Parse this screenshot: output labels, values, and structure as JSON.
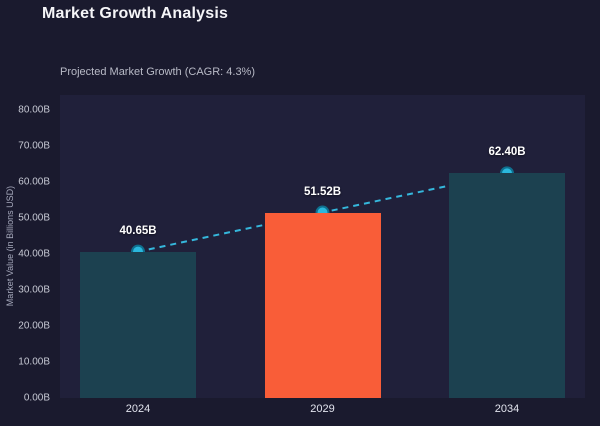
{
  "chart_data": {
    "type": "bar",
    "title": "Market Growth Analysis",
    "subtitle": "Projected Market Growth (CAGR: 4.3%)",
    "ylabel": "Market Value (in Billions USD)",
    "xlabel": "",
    "categories": [
      "2024",
      "2029",
      "2034"
    ],
    "values": [
      40.65,
      51.52,
      62.4
    ],
    "value_labels": [
      "40.65B",
      "51.52B",
      "62.40B"
    ],
    "bar_colors": [
      "#1c4150",
      "#f95d38",
      "#1c4150"
    ],
    "ylim": [
      0,
      80
    ],
    "ytick_values": [
      0,
      10,
      20,
      30,
      40,
      50,
      60,
      70,
      80
    ],
    "ytick_labels": [
      "0.00B",
      "10.00B",
      "20.00B",
      "30.00B",
      "40.00B",
      "50.00B",
      "60.00B",
      "70.00B",
      "80.00B"
    ],
    "grid": false,
    "legend": false,
    "trend_line": {
      "style": "dashed",
      "color": "#35b7dc",
      "marker_fill": "#2ab8dd",
      "marker_stroke": "#0f6f8e"
    },
    "colors": {
      "background": "#1a1a2e",
      "plot_background": "#20203a",
      "title": "#f5f5f8",
      "subtitle": "#b8bac6",
      "tick": "#c7c9d4"
    }
  }
}
